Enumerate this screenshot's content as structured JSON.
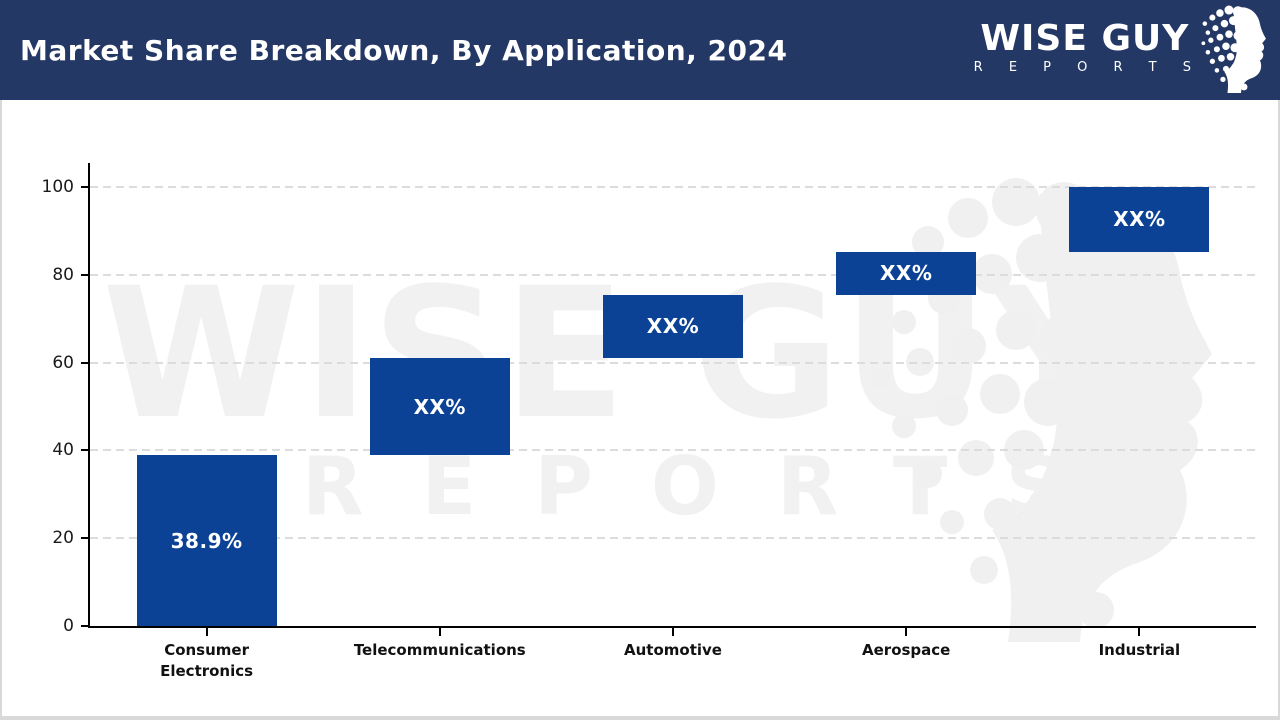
{
  "header": {
    "title": "Market Share Breakdown, By Application, 2024",
    "bg_color": "#243866",
    "logo": {
      "line1": "WISE GUY",
      "line2": "R E P O R T S"
    }
  },
  "watermark": {
    "line1": "WISE GUY",
    "line2": "REPORTS"
  },
  "chart_data": {
    "type": "bar",
    "subtype": "waterfall-floating-bars",
    "title": "Market Share Breakdown, By Application, 2024",
    "categories": [
      "Consumer\nElectronics",
      "Telecommunications",
      "Automotive",
      "Aerospace",
      "Industrial"
    ],
    "series": [
      {
        "name": "Market Share (%)",
        "segments": [
          {
            "category": "Consumer Electronics",
            "start": 0,
            "end": 38.9,
            "label": "38.9%"
          },
          {
            "category": "Telecommunications",
            "start": 38.9,
            "end": 61.0,
            "label": "XX%"
          },
          {
            "category": "Automotive",
            "start": 61.0,
            "end": 75.5,
            "label": "XX%"
          },
          {
            "category": "Aerospace",
            "start": 75.5,
            "end": 85.3,
            "label": "XX%"
          },
          {
            "category": "Industrial",
            "start": 85.3,
            "end": 100,
            "label": "XX%"
          }
        ]
      }
    ],
    "xlabel": "",
    "ylabel": "",
    "ylim": [
      0,
      100
    ],
    "yticks": [
      0,
      20,
      40,
      60,
      80,
      100
    ],
    "grid": "horizontal-dashed",
    "legend": "none",
    "bar_color": "#0b4296",
    "bar_label_color": "#ffffff"
  }
}
